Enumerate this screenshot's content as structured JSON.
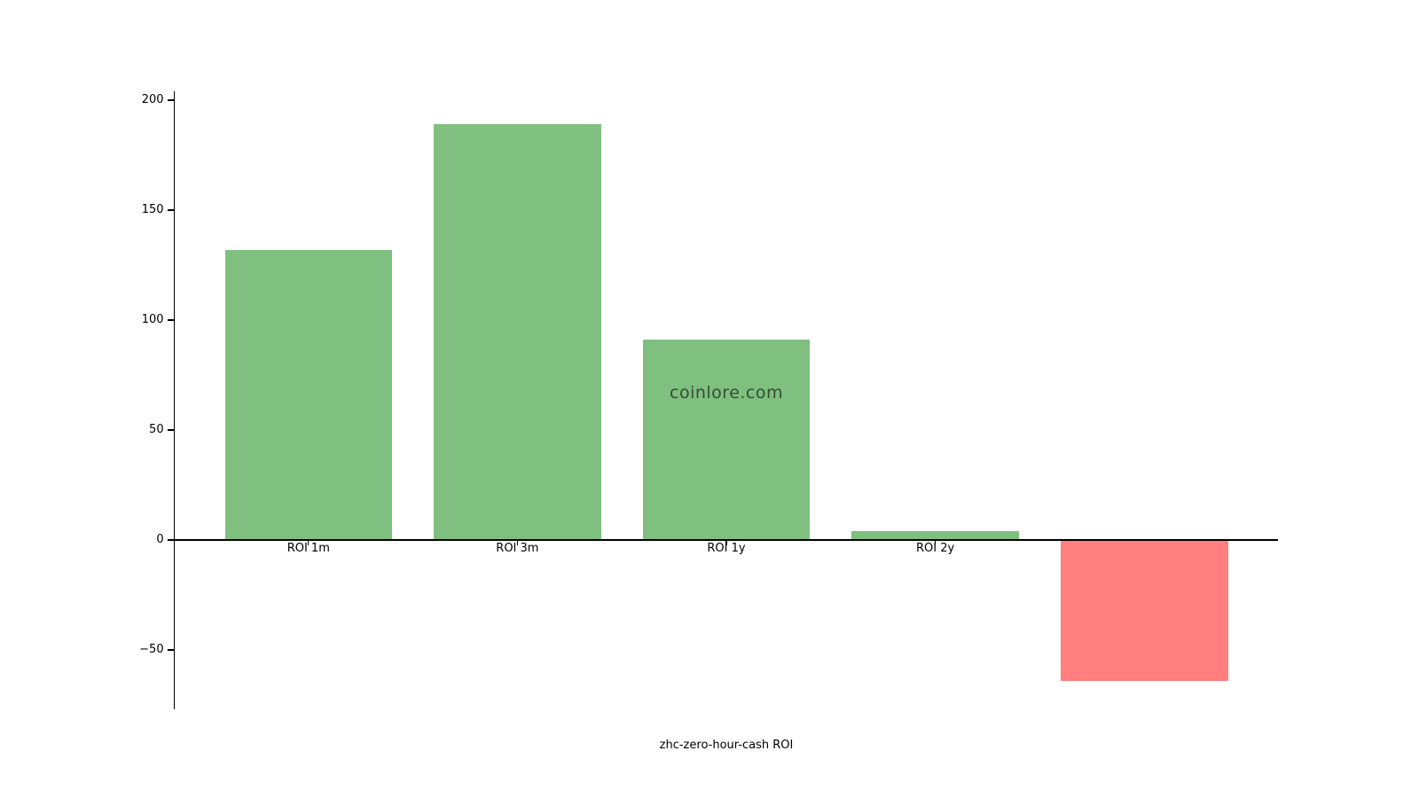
{
  "chart_data": {
    "type": "bar",
    "title": "zhc-zero-hour-cash ROI",
    "watermark": "coinlore.com",
    "categories": [
      "ROI 1m",
      "ROI 3m",
      "ROI 1y",
      "ROI 2y",
      ""
    ],
    "values": [
      132,
      189,
      91,
      4,
      -64
    ],
    "series": [
      {
        "name": "ROI",
        "values": [
          132,
          189,
          91,
          4,
          -64
        ]
      }
    ],
    "positive_color": "#7fbf7f",
    "negative_color": "#ff7f7f",
    "axis_color": "#000000",
    "background_color": "#ffffff",
    "xlabel": "zhc-zero-hour-cash ROI",
    "ylabel": "",
    "ylim": [
      -77,
      204
    ],
    "y_ticks": [
      {
        "value": 200,
        "label": "200"
      },
      {
        "value": 150,
        "label": "150"
      },
      {
        "value": 100,
        "label": "100"
      },
      {
        "value": 50,
        "label": "50"
      },
      {
        "value": 0,
        "label": "0"
      },
      {
        "value": -50,
        "label": "−50"
      }
    ],
    "grid": false,
    "legend": false,
    "baseline_at_zero": true
  }
}
